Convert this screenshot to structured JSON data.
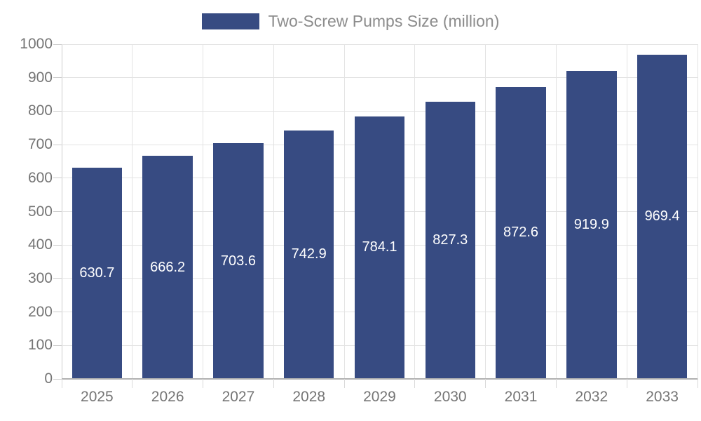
{
  "legend": {
    "label": "Two-Screw Pumps Size (million)"
  },
  "colors": {
    "bar": "#374b82",
    "grid": "#e3e3e3",
    "axis_line": "#b1b1b1",
    "y_tick": "#cccccc",
    "x_tick": "#d9d9d9",
    "axis_label_text": "#757575",
    "legend_text": "#8c8c8c",
    "value_label_text": "#ffffff"
  },
  "chart_data": {
    "type": "bar",
    "title": "Two-Screw Pumps Size (million)",
    "categories": [
      "2025",
      "2026",
      "2027",
      "2028",
      "2029",
      "2030",
      "2031",
      "2032",
      "2033"
    ],
    "values": [
      630.7,
      666.2,
      703.6,
      742.9,
      784.1,
      827.3,
      872.6,
      919.9,
      969.4
    ],
    "xlabel": "",
    "ylabel": "",
    "ylim": [
      0,
      1000
    ],
    "ytick_step": 100,
    "grid": true,
    "legend_position": "top-center",
    "bar_width_ratio": 0.71,
    "value_label_position": "inside-center",
    "value_label_decimals": 1
  }
}
